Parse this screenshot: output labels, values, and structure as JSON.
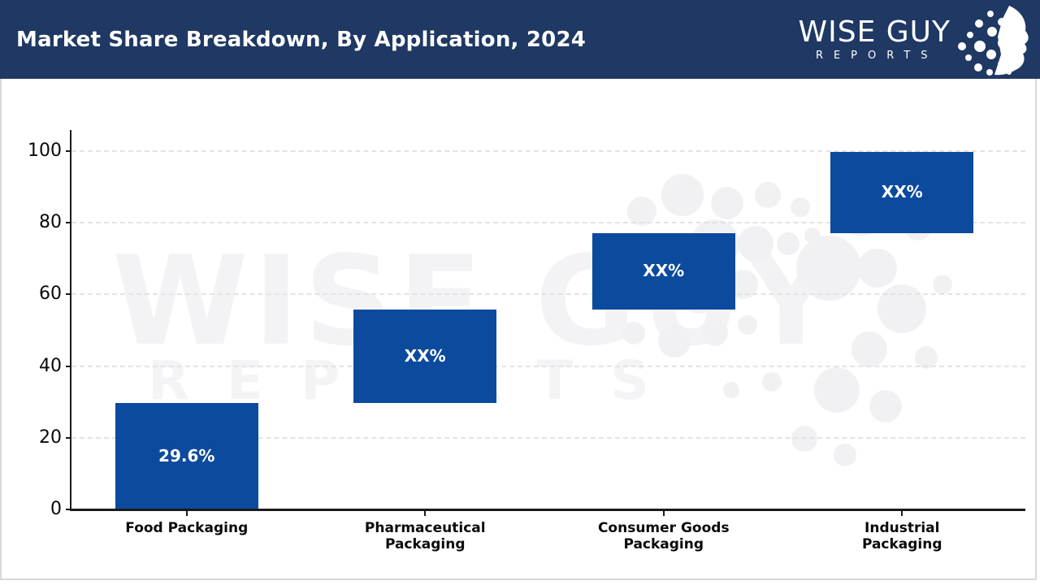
{
  "header": {
    "title": "Market Share Breakdown, By Application, 2024",
    "logo": {
      "line1": "WISE GUY",
      "line2": "REPORTS"
    }
  },
  "watermark": {
    "line1": "WISE GUY",
    "line2": "REPORTS"
  },
  "colors": {
    "header_bg": "#1f3864",
    "bar": "#0c4a9e",
    "bar_label": "#ffffff",
    "grid": "#e3e3e3",
    "axis": "#1a1a1a",
    "watermark": "#f3f3f5",
    "frame": "#d9d9d9"
  },
  "chart_data": {
    "type": "bar",
    "subtype": "waterfall-floating-bars",
    "title": "Market Share Breakdown, By Application, 2024",
    "xlabel": "",
    "ylabel": "",
    "categories": [
      "Food Packaging",
      "Pharmaceutical Packaging",
      "Consumer Goods Packaging",
      "Industrial Packaging"
    ],
    "segments": [
      {
        "start": 0,
        "end": 29.6,
        "label": "29.6%"
      },
      {
        "start": 29.6,
        "end": 55.8,
        "label": "XX%"
      },
      {
        "start": 55.8,
        "end": 77.2,
        "label": "XX%"
      },
      {
        "start": 77.2,
        "end": 99.8,
        "label": "XX%"
      }
    ],
    "yticks": [
      0,
      20,
      40,
      60,
      80,
      100
    ],
    "ytick_labels": [
      "0",
      "20",
      "40",
      "60",
      "80",
      "100"
    ],
    "ylim": [
      0,
      105
    ],
    "grid": "horizontal-dashed",
    "legend": "none"
  }
}
